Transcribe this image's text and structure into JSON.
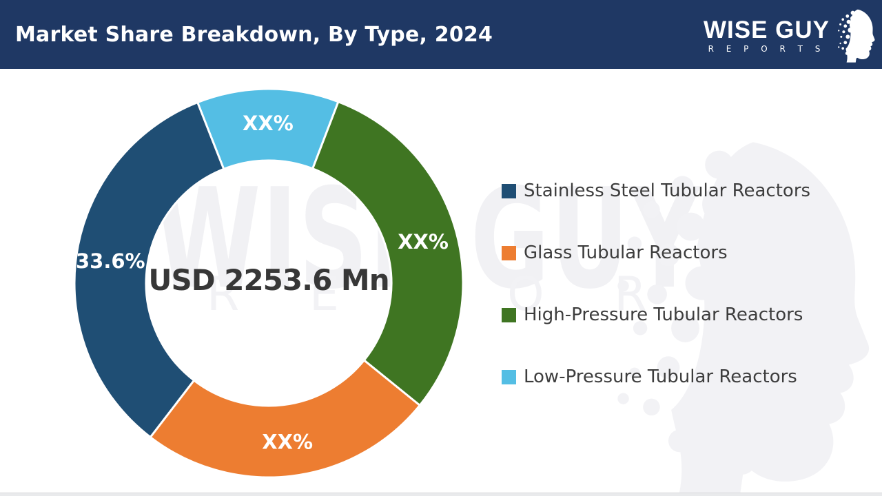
{
  "header": {
    "title": "Market Share Breakdown, By Type, 2024",
    "logo": {
      "name": "WISE GUY",
      "tagline": "R E P O R T S"
    }
  },
  "watermark": {
    "line1": "WISE GUY",
    "line2": "R E P O R T S"
  },
  "chart_data": {
    "type": "pie",
    "subtype": "donut",
    "title": "Market Share Breakdown, By Type, 2024",
    "center_label": "USD 2253.6 Mn",
    "start_angle_deg": -21.5,
    "inner_radius_ratio": 0.63,
    "legend_position": "right",
    "slices": [
      {
        "label": "Low-Pressure Tubular Reactors",
        "display": "XX%",
        "pct": 11.8,
        "color": "#54BEE4"
      },
      {
        "label": "High-Pressure Tubular Reactors",
        "display": "XX%",
        "pct": 30.0,
        "color": "#3F7522"
      },
      {
        "label": "Glass Tubular Reactors",
        "display": "XX%",
        "pct": 24.6,
        "color": "#ED7D31"
      },
      {
        "label": "Stainless Steel Tubular Reactors",
        "display": "33.6%",
        "pct": 33.6,
        "color": "#1F4E74"
      }
    ],
    "legend": [
      {
        "label": "Stainless Steel Tubular Reactors",
        "color": "#1F4E74"
      },
      {
        "label": "Glass Tubular Reactors",
        "color": "#ED7D31"
      },
      {
        "label": "High-Pressure Tubular Reactors",
        "color": "#3F7522"
      },
      {
        "label": "Low-Pressure Tubular Reactors",
        "color": "#54BEE4"
      }
    ]
  }
}
